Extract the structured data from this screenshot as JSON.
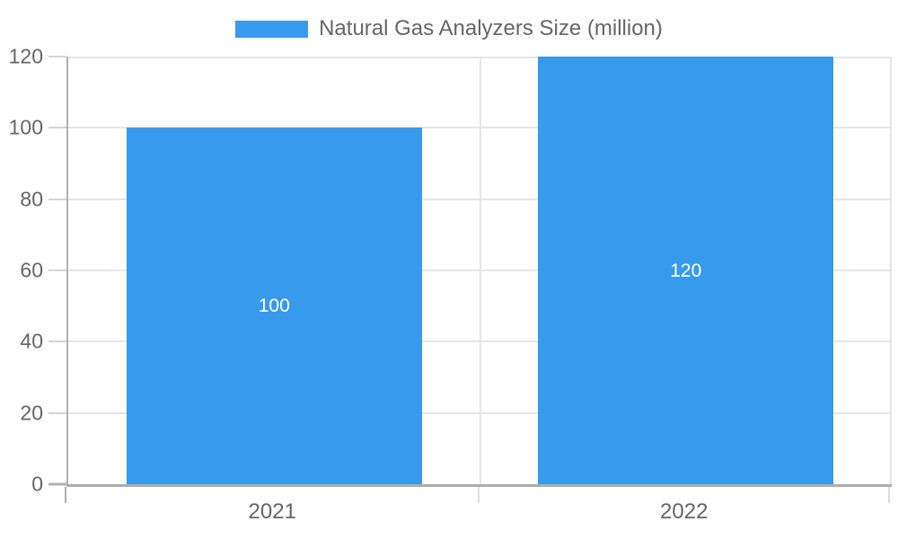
{
  "chart_data": {
    "type": "bar",
    "title": "",
    "categories": [
      "2021",
      "2022"
    ],
    "series": [
      {
        "name": "Natural Gas Analyzers Size (million)",
        "values": [
          100,
          120
        ],
        "color": "#389aec"
      }
    ],
    "data_labels": [
      "100",
      "120"
    ],
    "ylim": [
      0,
      120
    ],
    "ytick_labels": [
      "0",
      "20",
      "40",
      "60",
      "80",
      "100",
      "120"
    ],
    "xlabel": "",
    "ylabel": "",
    "grid": true,
    "legend_position": "top"
  },
  "legend": {
    "label": "Natural Gas Analyzers Size (million)",
    "swatch_color": "#389aec"
  },
  "colors": {
    "bar": "#389aec",
    "grid_line": "#e6e6e6",
    "axis_line": "#b0b0b0",
    "tick_text": "#666666",
    "data_label_text": "#ffffff",
    "background": "#ffffff"
  }
}
